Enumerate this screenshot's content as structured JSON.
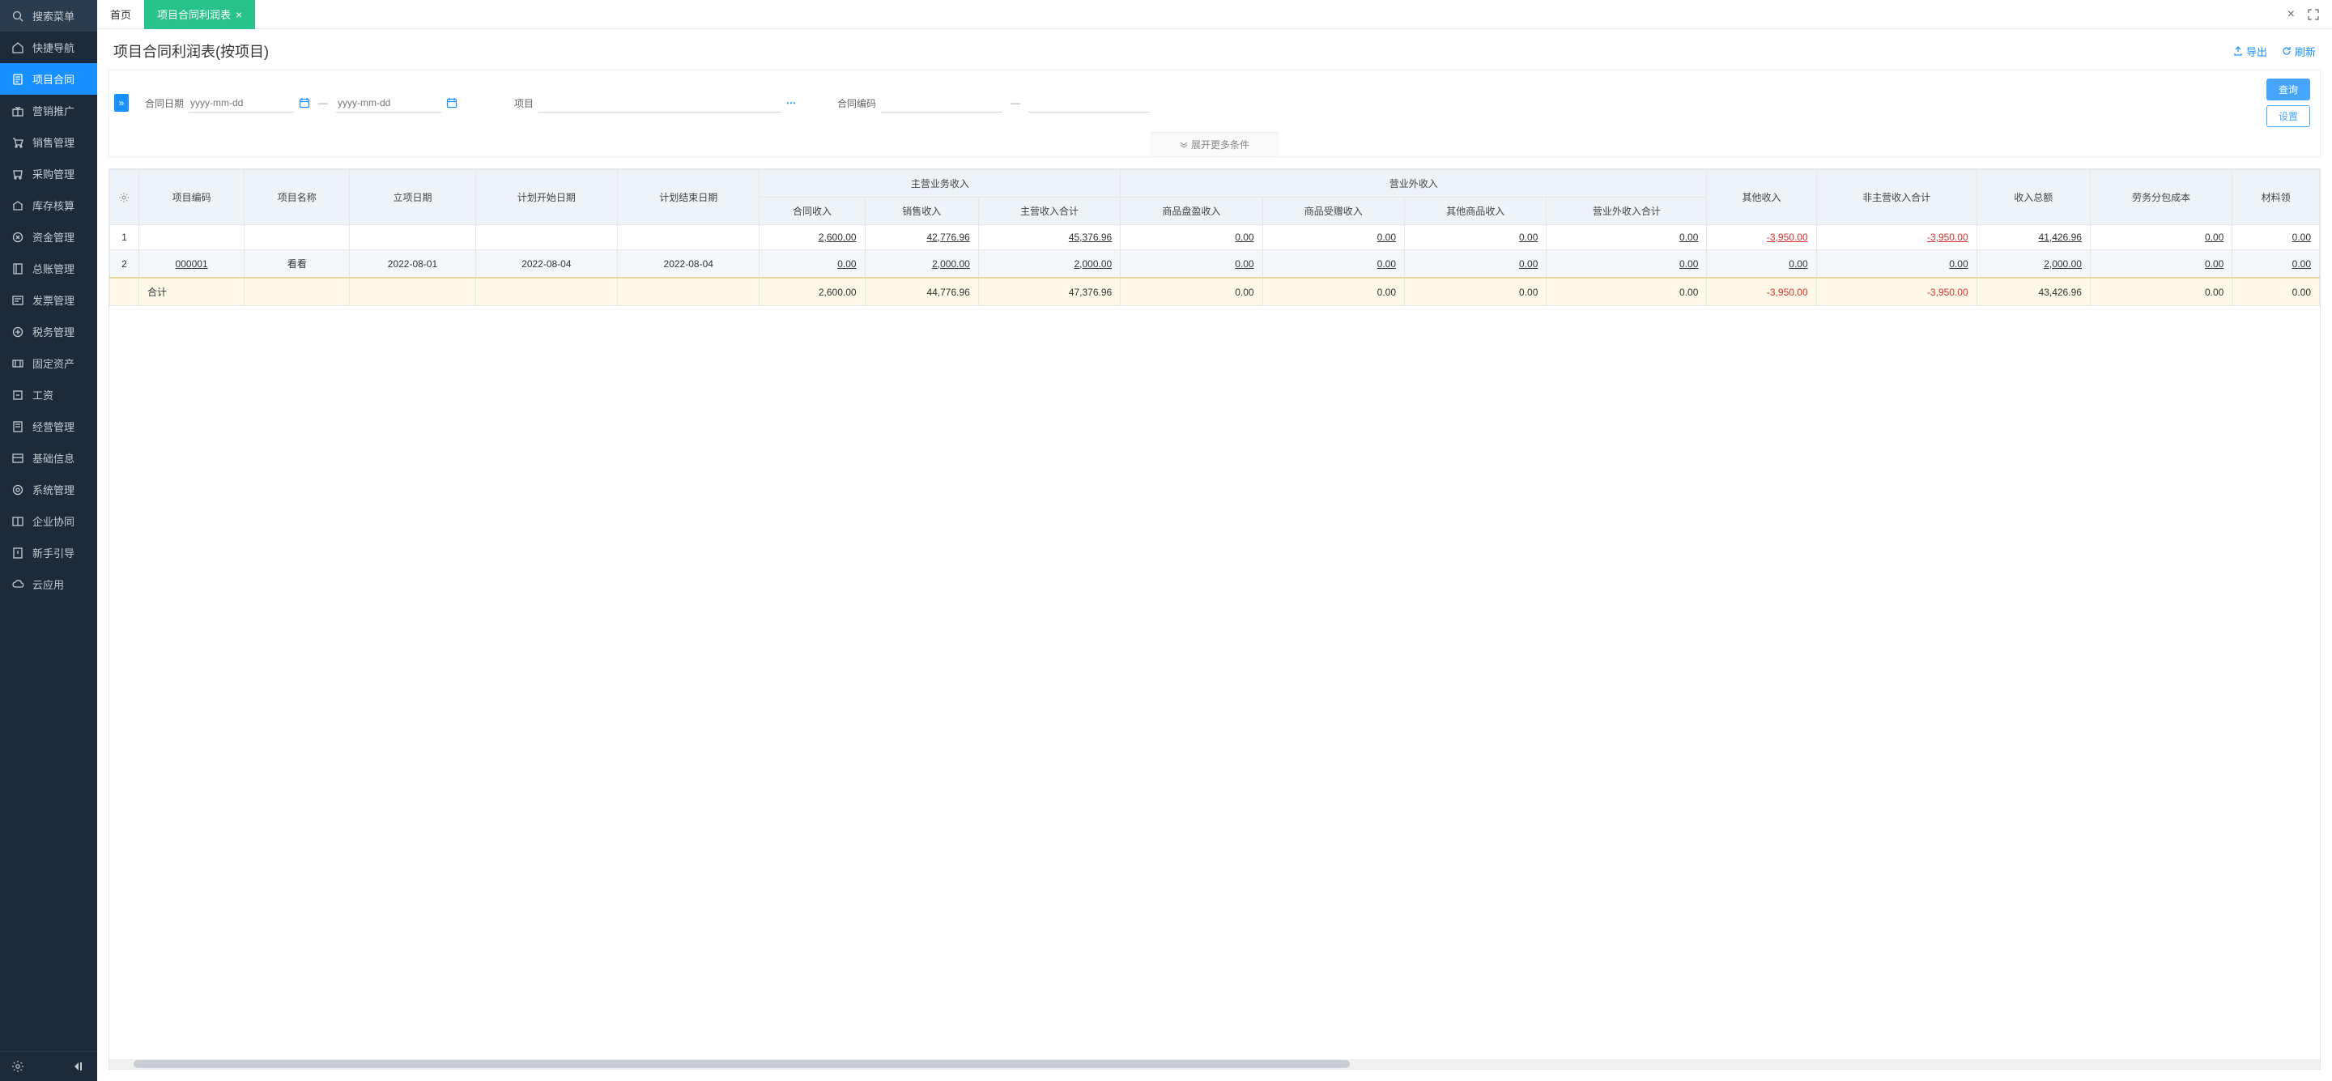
{
  "sidebar": {
    "items": [
      {
        "label": "搜索菜单",
        "icon": "search"
      },
      {
        "label": "快捷导航",
        "icon": "home"
      },
      {
        "label": "项目合同",
        "icon": "contract",
        "active": true
      },
      {
        "label": "营销推广",
        "icon": "gift"
      },
      {
        "label": "销售管理",
        "icon": "cart"
      },
      {
        "label": "采购管理",
        "icon": "cart2"
      },
      {
        "label": "库存核算",
        "icon": "house"
      },
      {
        "label": "资金管理",
        "icon": "coin"
      },
      {
        "label": "总账管理",
        "icon": "ledger"
      },
      {
        "label": "发票管理",
        "icon": "invoice"
      },
      {
        "label": "税务管理",
        "icon": "tax"
      },
      {
        "label": "固定资产",
        "icon": "asset"
      },
      {
        "label": "工资",
        "icon": "wage"
      },
      {
        "label": "经营管理",
        "icon": "biz"
      },
      {
        "label": "基础信息",
        "icon": "info"
      },
      {
        "label": "系统管理",
        "icon": "sys"
      },
      {
        "label": "企业协同",
        "icon": "collab"
      },
      {
        "label": "新手引导",
        "icon": "guide"
      },
      {
        "label": "云应用",
        "icon": "cloud"
      }
    ]
  },
  "tabs": {
    "home": "首页",
    "active": "项目合同利润表"
  },
  "page": {
    "title": "项目合同利润表(按项目)",
    "export": "导出",
    "refresh": "刷新"
  },
  "filters": {
    "date_label": "合同日期",
    "date_placeholder": "yyyy-mm-dd",
    "project_label": "项目",
    "code_label": "合同编码",
    "query": "查询",
    "settings": "设置",
    "expand": "展开更多条件"
  },
  "table": {
    "group_headers": {
      "main_rev": "主营业务收入",
      "other_rev": "营业外收入"
    },
    "headers": {
      "proj_code": "项目编码",
      "proj_name": "项目名称",
      "init_date": "立项日期",
      "plan_start": "计划开始日期",
      "plan_end": "计划结束日期",
      "contract_rev": "合同收入",
      "sales_rev": "销售收入",
      "main_rev_total": "主营收入合计",
      "goods_surplus": "商品盘盈收入",
      "goods_donate": "商品受赠收入",
      "other_goods": "其他商品收入",
      "nonop_total": "营业外收入合计",
      "other_income": "其他收入",
      "nonmain_total": "非主营收入合计",
      "total_income": "收入总额",
      "labor_cost": "劳务分包成本",
      "material": "材料领"
    },
    "rows": [
      {
        "idx": "1",
        "proj_code": "",
        "proj_name": "",
        "init_date": "",
        "plan_start": "",
        "plan_end": "",
        "contract_rev": "2,600.00",
        "sales_rev": "42,776.96",
        "main_rev_total": "45,376.96",
        "goods_surplus": "0.00",
        "goods_donate": "0.00",
        "other_goods": "0.00",
        "nonop_total": "0.00",
        "other_income": "-3,950.00",
        "other_income_neg": true,
        "nonmain_total": "-3,950.00",
        "nonmain_total_neg": true,
        "total_income": "41,426.96",
        "labor_cost": "0.00",
        "material": "0.00"
      },
      {
        "idx": "2",
        "proj_code": "000001",
        "proj_name": "看看",
        "init_date": "2022-08-01",
        "plan_start": "2022-08-04",
        "plan_end": "2022-08-04",
        "contract_rev": "0.00",
        "sales_rev": "2,000.00",
        "main_rev_total": "2,000.00",
        "goods_surplus": "0.00",
        "goods_donate": "0.00",
        "other_goods": "0.00",
        "nonop_total": "0.00",
        "other_income": "0.00",
        "nonmain_total": "0.00",
        "total_income": "2,000.00",
        "labor_cost": "0.00",
        "material": "0.00"
      }
    ],
    "footer": {
      "label": "合计",
      "contract_rev": "2,600.00",
      "sales_rev": "44,776.96",
      "main_rev_total": "47,376.96",
      "goods_surplus": "0.00",
      "goods_donate": "0.00",
      "other_goods": "0.00",
      "nonop_total": "0.00",
      "other_income": "-3,950.00",
      "nonmain_total": "-3,950.00",
      "total_income": "43,426.96",
      "labor_cost": "0.00",
      "material": "0.00"
    }
  }
}
